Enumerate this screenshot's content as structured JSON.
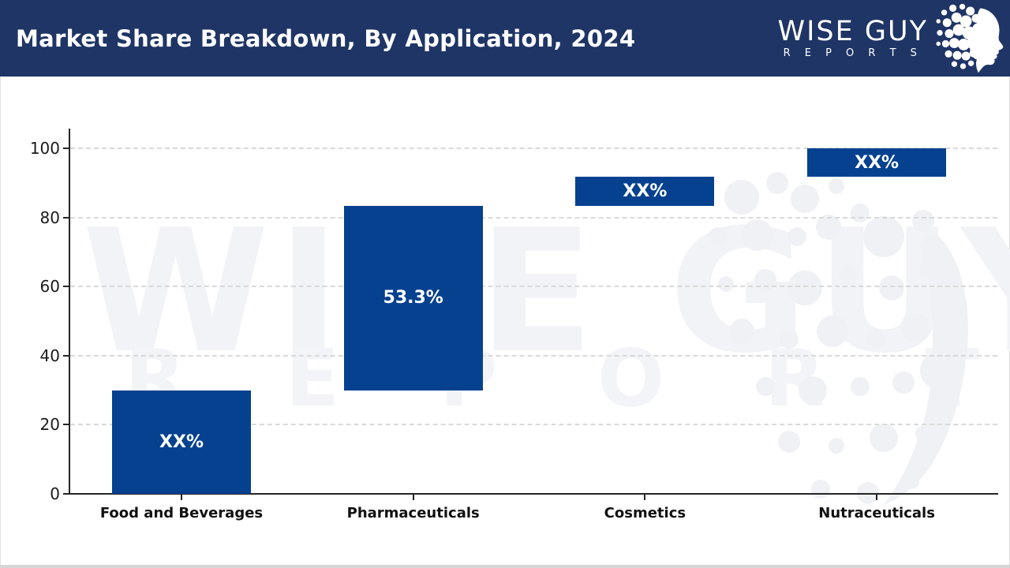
{
  "header": {
    "title": "Market Share Breakdown, By Application, 2024",
    "logo": {
      "line1": "WISE GUY",
      "line2": "R E P O R T S"
    }
  },
  "watermark": {
    "line1": "WISE GUY",
    "line2": "R E P O R T S"
  },
  "chart_data": {
    "type": "bar",
    "subtype": "waterfall",
    "title": "Market Share Breakdown, By Application, 2024",
    "categories": [
      "Food and Beverages",
      "Pharmaceuticals",
      "Cosmetics",
      "Nutraceuticals"
    ],
    "segments": [
      {
        "category": "Food and Beverages",
        "start": 0,
        "end": 30,
        "label": "XX%"
      },
      {
        "category": "Pharmaceuticals",
        "start": 30,
        "end": 83.3,
        "label": "53.3%"
      },
      {
        "category": "Cosmetics",
        "start": 83.3,
        "end": 91.7,
        "label": "XX%"
      },
      {
        "category": "Nutraceuticals",
        "start": 91.7,
        "end": 100,
        "label": "XX%"
      }
    ],
    "yticks": [
      0,
      20,
      40,
      60,
      80,
      100
    ],
    "ylim": [
      0,
      100
    ],
    "xlabel": "",
    "ylabel": "",
    "grid": "horizontal-dashed",
    "legend": "none",
    "bar_color": "#05418f",
    "bar_label_color": "#ffffff",
    "axis_color": "#262626",
    "grid_color": "#d9d9d9"
  },
  "colors": {
    "header_bg": "#1f3565",
    "page_bg": "#ffffff",
    "watermark": "#f2f3f6"
  }
}
